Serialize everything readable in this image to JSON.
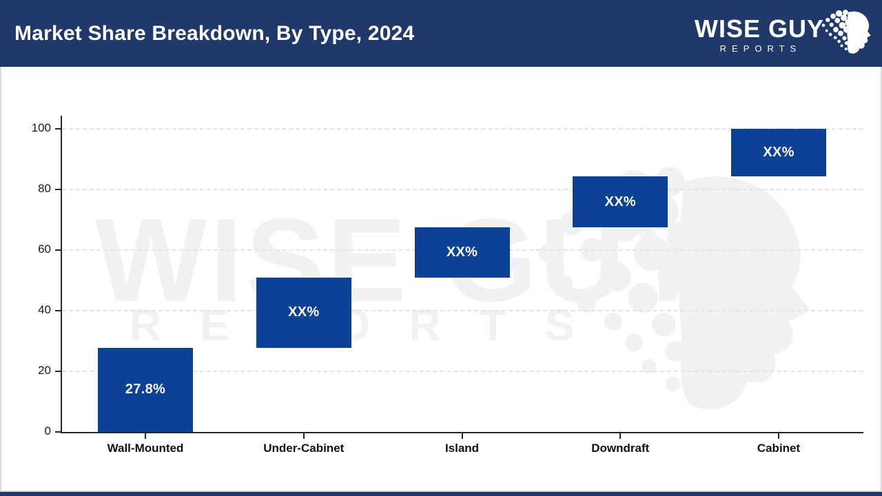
{
  "header": {
    "title": "Market Share Breakdown, By Type, 2024",
    "logo": {
      "name": "WISE GUY",
      "sub": "REPORTS"
    }
  },
  "watermark": {
    "line1": "WISE GUY",
    "line2": "REPORTS"
  },
  "colors": {
    "header_bg": "#21386b",
    "footer_bg": "#21386b",
    "bar": "#0c4296",
    "axis": "#262626",
    "grid": "#e3e3e3",
    "body_border": "#d9d9d9",
    "watermark": "#f0f1f3"
  },
  "chart_data": {
    "type": "bar",
    "variant": "waterfall-floating",
    "title": "Market Share Breakdown, By Type, 2024",
    "categories": [
      "Wall-Mounted",
      "Under-Cabinet",
      "Island",
      "Downdraft",
      "Cabinet"
    ],
    "segments": [
      {
        "category": "Wall-Mounted",
        "start": 0,
        "end": 27.8,
        "label": "27.8%"
      },
      {
        "category": "Under-Cabinet",
        "start": 27.8,
        "end": 51.0,
        "label": "XX%"
      },
      {
        "category": "Island",
        "start": 51.0,
        "end": 67.5,
        "label": "XX%"
      },
      {
        "category": "Downdraft",
        "start": 67.5,
        "end": 84.3,
        "label": "XX%"
      },
      {
        "category": "Cabinet",
        "start": 84.3,
        "end": 100.0,
        "label": "XX%"
      }
    ],
    "xlabel": "",
    "ylabel": "",
    "ylim": [
      0,
      100
    ],
    "yticks": [
      0,
      20,
      40,
      60,
      80,
      100
    ],
    "grid": "horizontal-dashed",
    "legend": "none"
  }
}
